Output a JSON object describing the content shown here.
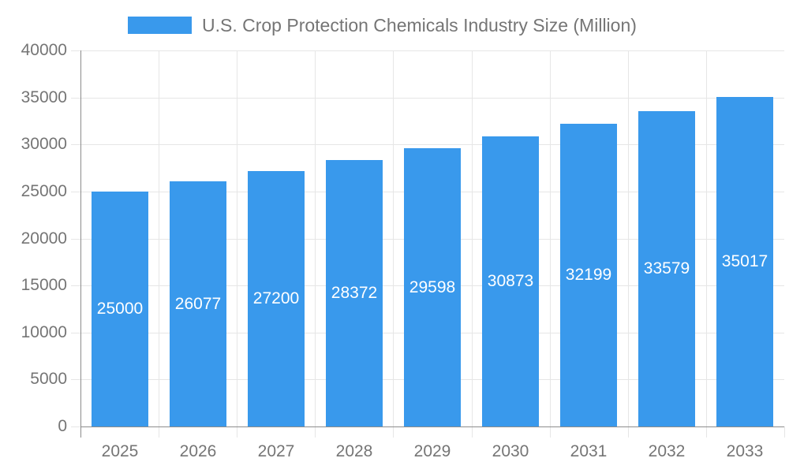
{
  "chart_data": {
    "type": "bar",
    "title": "U.S. Crop Protection Chemicals Industry Size (Million)",
    "categories": [
      "2025",
      "2026",
      "2027",
      "2028",
      "2029",
      "2030",
      "2031",
      "2032",
      "2033"
    ],
    "series": [
      {
        "name": "U.S. Crop Protection Chemicals Industry Size (Million)",
        "values": [
          25000,
          26077,
          27200,
          28372,
          29598,
          30873,
          32199,
          33579,
          35017
        ]
      }
    ],
    "xlabel": "",
    "ylabel": "",
    "ylim": [
      0,
      40000
    ],
    "yticks": [
      0,
      5000,
      10000,
      15000,
      20000,
      25000,
      30000,
      35000,
      40000
    ],
    "grid": true,
    "legend_position": "top",
    "bar_value_labels": "inside-center",
    "colors": {
      "bar": "#3999EC",
      "bar_label": "#FFFFFF",
      "axis_text": "#757575",
      "grid_line": "#E6E6E6",
      "axis_line": "#8C8C8C",
      "background": "#FFFFFF"
    }
  }
}
